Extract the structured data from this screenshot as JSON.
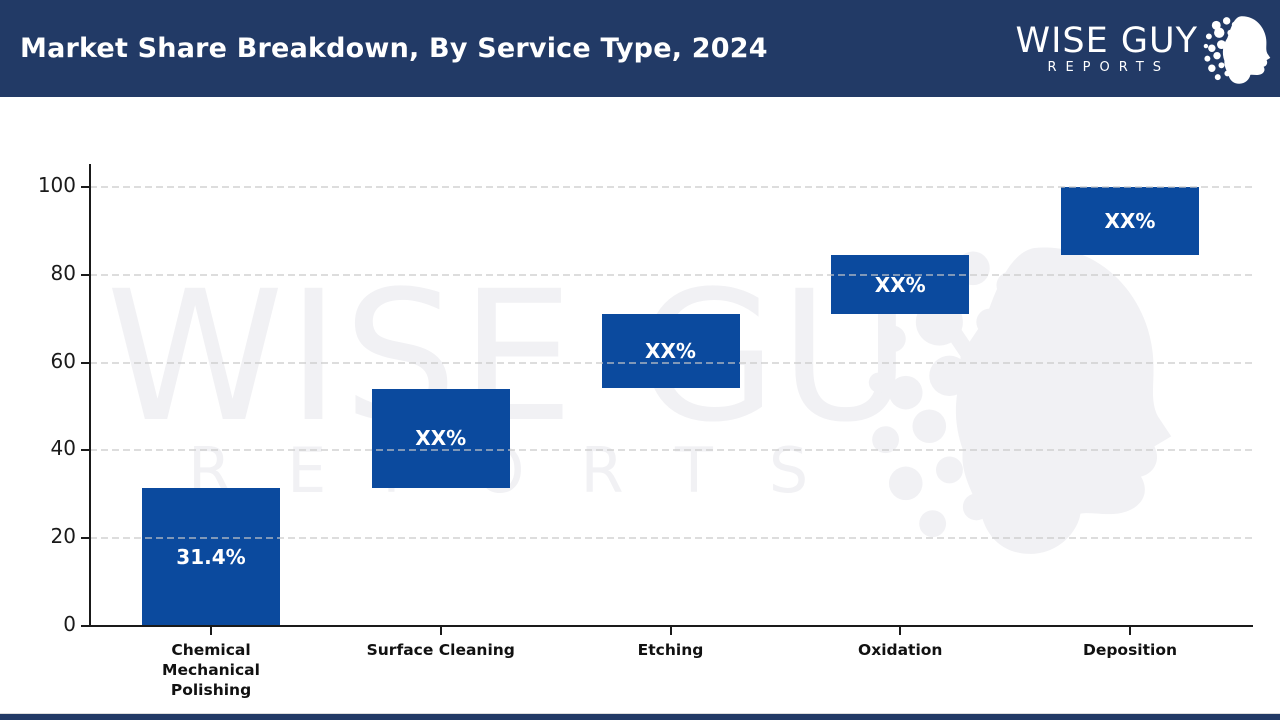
{
  "header": {
    "title": "Market Share Breakdown, By Service Type, 2024",
    "logo": {
      "line1": "WISE GUY",
      "line2": "REPORTS"
    }
  },
  "watermark": {
    "line1": "WISE GUY",
    "line2": "REPORTS"
  },
  "colors": {
    "header_bg": "#223A66",
    "bar_blue": "#0B4A9E",
    "grid_dash": "#C8C8C8",
    "title_text": "#FFFFFF",
    "axis_text": "#1A1A1A",
    "bar_label_text": "#FFFFFF",
    "watermark": "#F1F1F4",
    "footer_strip": "#223A66"
  },
  "chart_data": {
    "type": "bar",
    "subtype": "waterfall",
    "title": "Market Share Breakdown, By Service Type, 2024",
    "xlabel": "",
    "ylabel": "",
    "ylim": [
      0,
      100
    ],
    "yticks": [
      0,
      20,
      40,
      60,
      80,
      100
    ],
    "grid": "horizontal-dashed-over-bars",
    "legend": null,
    "categories": [
      "Chemical Mechanical Polishing",
      "Surface Cleaning",
      "Etching",
      "Oxidation",
      "Deposition"
    ],
    "segments": [
      {
        "category": "Chemical Mechanical Polishing",
        "display": "Chemical\nMechanical\nPolishing",
        "start": 0,
        "end": 31.4,
        "value": 31.4,
        "label": "31.4%"
      },
      {
        "category": "Surface Cleaning",
        "display": "Surface Cleaning",
        "start": 31.4,
        "end": 54.1,
        "value": 22.7,
        "label": "XX%"
      },
      {
        "category": "Etching",
        "display": "Etching",
        "start": 54.1,
        "end": 71.0,
        "value": 16.9,
        "label": "XX%"
      },
      {
        "category": "Oxidation",
        "display": "Oxidation",
        "start": 71.0,
        "end": 84.5,
        "value": 13.5,
        "label": "XX%"
      },
      {
        "category": "Deposition",
        "display": "Deposition",
        "start": 84.5,
        "end": 100.0,
        "value": 15.5,
        "label": "XX%"
      }
    ]
  }
}
